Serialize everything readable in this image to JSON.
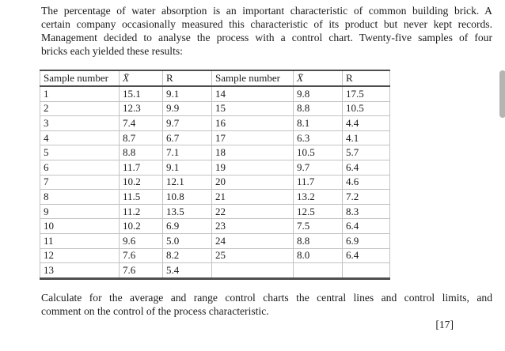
{
  "colors": {
    "page-bg": "#ffffff",
    "text": "#1b1b1b",
    "table-border-light": "#c2c2c2",
    "table-border-dark": "#4e4e4e",
    "scrollbar-thumb": "#b4b4b4"
  },
  "intro": {
    "lines": [
      "The percentage of water absorption is an important characteristic of common building brick. A",
      "certain company occasionally measured this characteristic of its product but never kept records.",
      "Management decided to analyse the process with a control chart. Twenty-five samples of four",
      "bricks each yielded these results:"
    ]
  },
  "table": {
    "headers": [
      "Sample number",
      "X̄",
      "R",
      "Sample number",
      "X̄",
      "R"
    ],
    "rows": [
      [
        "1",
        "15.1",
        "9.1",
        "14",
        "9.8",
        "17.5"
      ],
      [
        "2",
        "12.3",
        "9.9",
        "15",
        "8.8",
        "10.5"
      ],
      [
        "3",
        "7.4",
        "9.7",
        "16",
        "8.1",
        "4.4"
      ],
      [
        "4",
        "8.7",
        "6.7",
        "17",
        "6.3",
        "4.1"
      ],
      [
        "5",
        "8.8",
        "7.1",
        "18",
        "10.5",
        "5.7"
      ],
      [
        "6",
        "11.7",
        "9.1",
        "19",
        "9.7",
        "6.4"
      ],
      [
        "7",
        "10.2",
        "12.1",
        "20",
        "11.7",
        "4.6"
      ],
      [
        "8",
        "11.5",
        "10.8",
        "21",
        "13.2",
        "7.2"
      ],
      [
        "9",
        "11.2",
        "13.5",
        "22",
        "12.5",
        "8.3"
      ],
      [
        "10",
        "10.2",
        "6.9",
        "23",
        "7.5",
        "6.4"
      ],
      [
        "11",
        "9.6",
        "5.0",
        "24",
        "8.8",
        "6.9"
      ],
      [
        "12",
        "7.6",
        "8.2",
        "25",
        "8.0",
        "6.4"
      ],
      [
        "13",
        "7.6",
        "5.4",
        "",
        "",
        ""
      ]
    ]
  },
  "question": {
    "lines": [
      "Calculate for the average and range control charts the central lines and control limits, and",
      "comment on the control of the process characteristic."
    ]
  },
  "marks": "[17]"
}
